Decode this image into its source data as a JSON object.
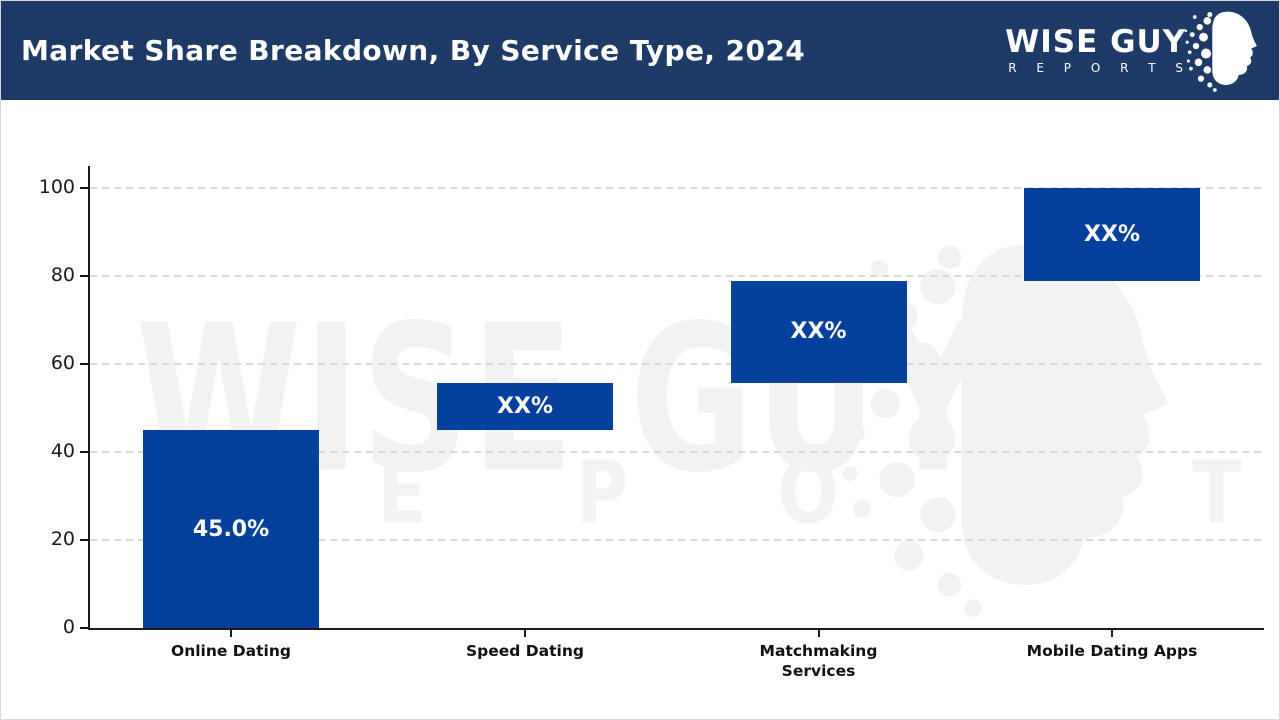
{
  "header": {
    "title": "Market Share Breakdown, By Service Type, 2024",
    "bg_color": "#1e3a67",
    "logo": {
      "line1": "WISE GUY",
      "line2": "R E P O R T S",
      "face_icon": "dotted-head-profile"
    }
  },
  "watermark": {
    "line1": "WISE GUY",
    "line2": "R E P O R T S",
    "face_icon": "dotted-head-profile"
  },
  "chart_data": {
    "type": "bar",
    "subtype": "waterfall",
    "title": "Market Share Breakdown, By Service Type, 2024",
    "categories": [
      "Online Dating",
      "Speed Dating",
      "Matchmaking\nServices",
      "Mobile Dating Apps"
    ],
    "segments": [
      {
        "category": "Online Dating",
        "start": 0,
        "end": 45,
        "label": "45.0%"
      },
      {
        "category": "Speed Dating",
        "start": 45,
        "end": 55.7,
        "label": "XX%"
      },
      {
        "category": "Matchmaking\nServices",
        "start": 55.7,
        "end": 78.9,
        "label": "XX%"
      },
      {
        "category": "Mobile Dating Apps",
        "start": 78.9,
        "end": 100,
        "label": "XX%"
      }
    ],
    "ylim": [
      0,
      105
    ],
    "yticks": [
      0,
      20,
      40,
      60,
      80,
      100
    ],
    "xlabel": "",
    "ylabel": "",
    "grid": "horizontal dashed",
    "legend": "none",
    "bar_color": "#05419c",
    "bar_label_color": "#ffffff",
    "axis_color": "#1a1a1a",
    "grid_color": "#d9d9d9"
  }
}
